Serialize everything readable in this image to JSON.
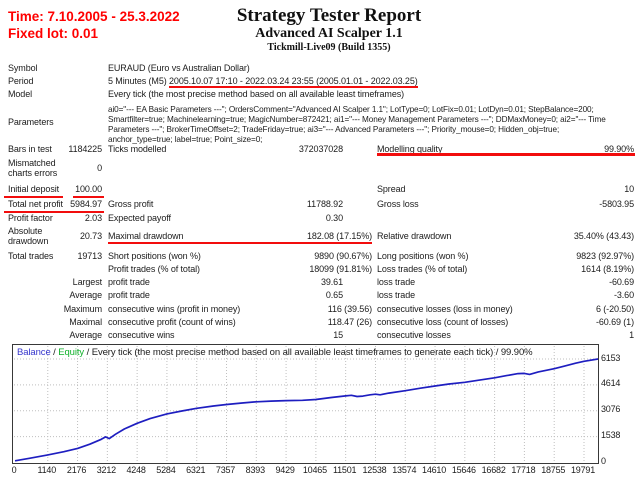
{
  "header": {
    "time_line": "Time: 7.10.2005 - 25.3.2022",
    "lot_line": "Fixed lot: 0.01"
  },
  "title": {
    "main": "Strategy Tester Report",
    "sub": "Advanced AI Scalper 1.1",
    "build": "Tickmill-Live09 (Build 1355)"
  },
  "table": {
    "rows": {
      "symbol": {
        "label": "Symbol",
        "value": "EURAUD (Euro vs Australian Dollar)"
      },
      "period": {
        "label": "Period",
        "prefix": "5 Minutes (M5) ",
        "underlined": "2005.10.07 17:10 - 2022.03.24 23:55 (2005.01.01 - 2022.03.25)"
      },
      "model": {
        "label": "Model",
        "value": "Every tick (the most precise method based on all available least timeframes)"
      },
      "parameters": {
        "label": "Parameters",
        "lines": [
          "ai0=\"--- EA Basic Parameters ---\"; OrdersComment=\"Advanced AI Scalper 1.1\"; LotType=0; LotFix=0.01; LotDyn=0.01; StepBalance=200;",
          "Smartfilter=true; Machinelearning=true; MagicNumber=872421; ai1=\"--- Money Management Parameters ---\"; DDMaxMoney=0; ai2=\"--- Time",
          "Parameters ---\"; BrokerTimeOffset=2; TradeFriday=true; ai3=\"--- Advanced Parameters ---\"; Priority_mouse=0; Hidden_obj=true;",
          "anchor_type=true; label=true; Point_size=0;"
        ]
      },
      "bars": {
        "label": "Bars in test",
        "value": "1184225",
        "label2": "Ticks modelled",
        "value2": "372037028",
        "label3": "Modelling quality",
        "value3": "99.90%"
      },
      "mismatched": {
        "label_line1": "Mismatched",
        "label_line2": "charts errors",
        "value": "0"
      },
      "deposit": {
        "label": "Initial deposit",
        "value": "100.00",
        "label3": "Spread",
        "value3": "10"
      },
      "netprofit": {
        "label": "Total net profit",
        "value": "5984.97",
        "label2": "Gross profit",
        "value2": "11788.92",
        "label3": "Gross loss",
        "value3": "-5803.95"
      },
      "profitfactor": {
        "label": "Profit factor",
        "value": "2.03",
        "label2": "Expected payoff",
        "value2": "0.30"
      },
      "drawdown": {
        "label_line1": "Absolute",
        "label_line2": "drawdown",
        "value": "20.73",
        "label2": "Maximal drawdown",
        "value2": "182.08 (17.15%)",
        "label3": "Relative drawdown",
        "value3": "35.40% (43.43)"
      },
      "trades": {
        "label": "Total trades",
        "value": "19713",
        "label2": "Short positions (won %)",
        "value2": "9890 (90.67%)",
        "label3": "Long positions (won %)",
        "value3": "9823 (92.97%)"
      },
      "profittrades": {
        "label2": "Profit trades (% of total)",
        "value2": "18099 (91.81%)",
        "label3": "Loss trades (% of total)",
        "value3": "1614 (8.19%)"
      },
      "largest": {
        "qual": "Largest",
        "label2": "profit trade",
        "value2": "39.61",
        "label3": "loss trade",
        "value3": "-60.69"
      },
      "average": {
        "qual": "Average",
        "label2": "profit trade",
        "value2": "0.65",
        "label3": "loss trade",
        "value3": "-3.60"
      },
      "maximum": {
        "qual": "Maximum",
        "label2": "consecutive wins (profit in money)",
        "value2": "116 (39.56)",
        "label3": "consecutive losses (loss in money)",
        "value3": "6 (-20.50)"
      },
      "maximal": {
        "qual": "Maximal",
        "label2": "consecutive profit (count of wins)",
        "value2": "118.47 (26)",
        "label3": "consecutive loss (count of losses)",
        "value3": "-60.69 (1)"
      },
      "avgcons": {
        "qual": "Average",
        "label2": "consecutive wins",
        "value2": "15",
        "label3": "consecutive losses",
        "value3": "1"
      }
    }
  },
  "chart": {
    "legend_balance": "Balance",
    "legend_sep1": " / ",
    "legend_equity": "Equity",
    "legend_sep2": " / ",
    "legend_suffix": "Every tick (the most precise method based on all available least timeframes to generate each tick) / 99.90%",
    "balance_color": "#3636cc",
    "equity_color": "#0fb02a"
  },
  "chart_data": {
    "type": "line",
    "title": "Balance / Equity / Every tick (the most precise method based on all available least timeframes to generate each tick) / 99.90%",
    "legend_position": "top-left-inside",
    "grid": "dotted",
    "x_ticks": [
      0,
      1140,
      2176,
      3212,
      4248,
      5284,
      6321,
      7357,
      8393,
      9429,
      10465,
      11501,
      12538,
      13574,
      14610,
      15646,
      16682,
      17718,
      18755,
      19791
    ],
    "y_ticks": [
      0,
      1538,
      3076,
      4614,
      6153
    ],
    "xlim": [
      0,
      20280
    ],
    "ylim": [
      0,
      6153
    ],
    "line_color": "#1e1ec0",
    "series": [
      {
        "name": "Balance",
        "color": "#1e1ec0",
        "points": [
          [
            0,
            100
          ],
          [
            500,
            250
          ],
          [
            1140,
            450
          ],
          [
            1700,
            640
          ],
          [
            2176,
            840
          ],
          [
            2600,
            1090
          ],
          [
            3000,
            1380
          ],
          [
            3150,
            1520
          ],
          [
            3280,
            1420
          ],
          [
            3500,
            1680
          ],
          [
            3800,
            1990
          ],
          [
            4248,
            2330
          ],
          [
            4700,
            2610
          ],
          [
            5284,
            2890
          ],
          [
            5800,
            3060
          ],
          [
            6321,
            3220
          ],
          [
            6900,
            3360
          ],
          [
            7357,
            3450
          ],
          [
            7900,
            3540
          ],
          [
            8393,
            3610
          ],
          [
            8900,
            3650
          ],
          [
            9429,
            3680
          ],
          [
            10000,
            3700
          ],
          [
            10465,
            3745
          ],
          [
            11000,
            3865
          ],
          [
            11501,
            3960
          ],
          [
            11700,
            3995
          ],
          [
            11900,
            3925
          ],
          [
            12100,
            3945
          ],
          [
            12350,
            4025
          ],
          [
            12538,
            4060
          ],
          [
            12700,
            4025
          ],
          [
            13000,
            4125
          ],
          [
            13574,
            4270
          ],
          [
            14100,
            4420
          ],
          [
            14610,
            4545
          ],
          [
            15100,
            4665
          ],
          [
            15646,
            4765
          ],
          [
            16100,
            4885
          ],
          [
            16682,
            5035
          ],
          [
            17100,
            5165
          ],
          [
            17500,
            5285
          ],
          [
            17718,
            5295
          ],
          [
            17900,
            5235
          ],
          [
            18200,
            5385
          ],
          [
            18755,
            5575
          ],
          [
            19100,
            5725
          ],
          [
            19500,
            5905
          ],
          [
            19791,
            6015
          ],
          [
            20280,
            6153
          ]
        ]
      }
    ]
  }
}
